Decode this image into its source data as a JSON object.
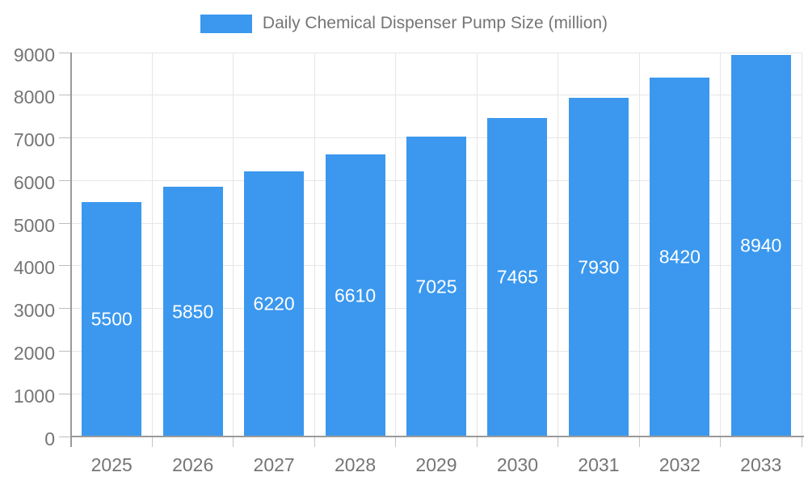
{
  "chart_data": {
    "type": "bar",
    "title": "Daily Chemical Dispenser Pump Size (million)",
    "categories": [
      "2025",
      "2026",
      "2027",
      "2028",
      "2029",
      "2030",
      "2031",
      "2032",
      "2033"
    ],
    "series": [
      {
        "name": "Daily Chemical Dispenser Pump Size (million)",
        "values": [
          5500,
          5850,
          6220,
          6610,
          7025,
          7465,
          7930,
          8420,
          8940
        ]
      }
    ],
    "data_labels": [
      "5500",
      "5850",
      "6220",
      "6610",
      "7025",
      "7465",
      "7930",
      "8420",
      "8940"
    ],
    "xlabel": "",
    "ylabel": "",
    "ylim": [
      0,
      9000
    ],
    "ytick_step": 1000,
    "ytick_labels": [
      "0",
      "1000",
      "2000",
      "3000",
      "4000",
      "5000",
      "6000",
      "7000",
      "8000",
      "9000"
    ],
    "grid": true,
    "legend_position": "top",
    "colors": {
      "bar": "#3B98EE",
      "bar_value_text": "#ffffff",
      "axis_text": "#757575",
      "gridline": "#e6e6e6",
      "axis_line": "#9a9a9a"
    }
  }
}
